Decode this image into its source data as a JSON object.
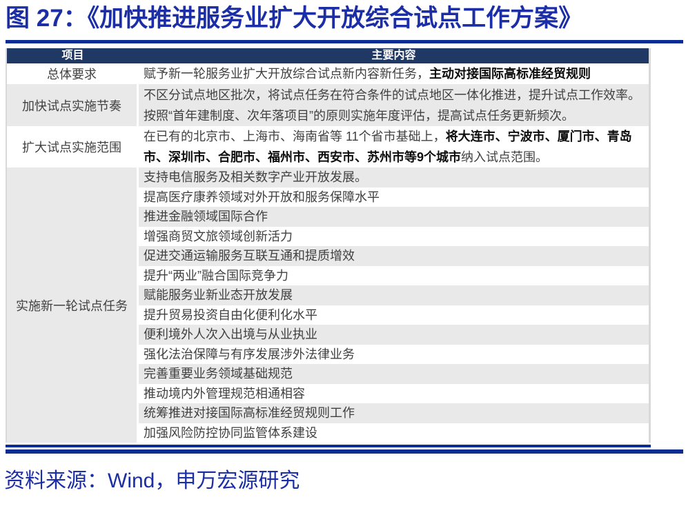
{
  "title": "图 27：《加快推进服务业扩大开放综合试点工作方案》",
  "table": {
    "header": {
      "item": "项目",
      "content": "主要内容"
    },
    "rows": [
      {
        "label": "总体要求",
        "segments": [
          {
            "text": "赋予新一轮服务业扩大开放综合试点新内容新任务，",
            "bold": false
          },
          {
            "text": "主动对接国际高标准经贸规则",
            "bold": true
          }
        ]
      },
      {
        "label": "加快试点实施节奏",
        "lines": [
          "不区分试点地区批次，将试点任务在符合条件的试点地区一体化推进，提升试点工作效率。",
          "按照“首年建制度、次年落项目”的原则实施年度评估，提高试点任务更新频次。"
        ]
      },
      {
        "label": "扩大试点实施范围",
        "segments": [
          {
            "text": "在已有的北京市、上海市、海南省等 11个省市基础上，",
            "bold": false
          },
          {
            "text": "将大连市、宁波市、厦门市、青岛市、深圳市、合肥市、福州市、西安市、苏州市等9个城市",
            "bold": true
          },
          {
            "text": "纳入试点范围。",
            "bold": false
          }
        ]
      }
    ],
    "task_section": {
      "label": "实施新一轮试点任务",
      "items": [
        "支持电信服务及相关数字产业开放发展。",
        "提高医疗康养领域对外开放和服务保障水平",
        "推进金融领域国际合作",
        "增强商贸文旅领域创新活力",
        "促进交通运输服务互联互通和提质增效",
        "提升“两业”融合国际竞争力",
        "赋能服务业新业态开放发展",
        "提升贸易投资自由化便利化水平",
        "便利境外人次入出境与从业执业",
        "强化法治保障与有序发展涉外法律业务",
        "完善重要业务领域基础规范",
        "推动境内外管理规范相通相容",
        "统筹推进对接国际高标准经贸规则工作",
        "加强风险防控协同监管体系建设"
      ]
    }
  },
  "source_note": "资料来源：Wind，申万宏源研究",
  "colors": {
    "title_blue": "#1B2EA6",
    "rule_blue": "#0B2D93",
    "header_bg": "#1F3864",
    "header_text": "#FFFFFF",
    "row_alt_gray": "#E9E9E9",
    "body_text": "#404040",
    "bold_text": "#0D0D0D",
    "table_border": "#D9D9D9"
  }
}
